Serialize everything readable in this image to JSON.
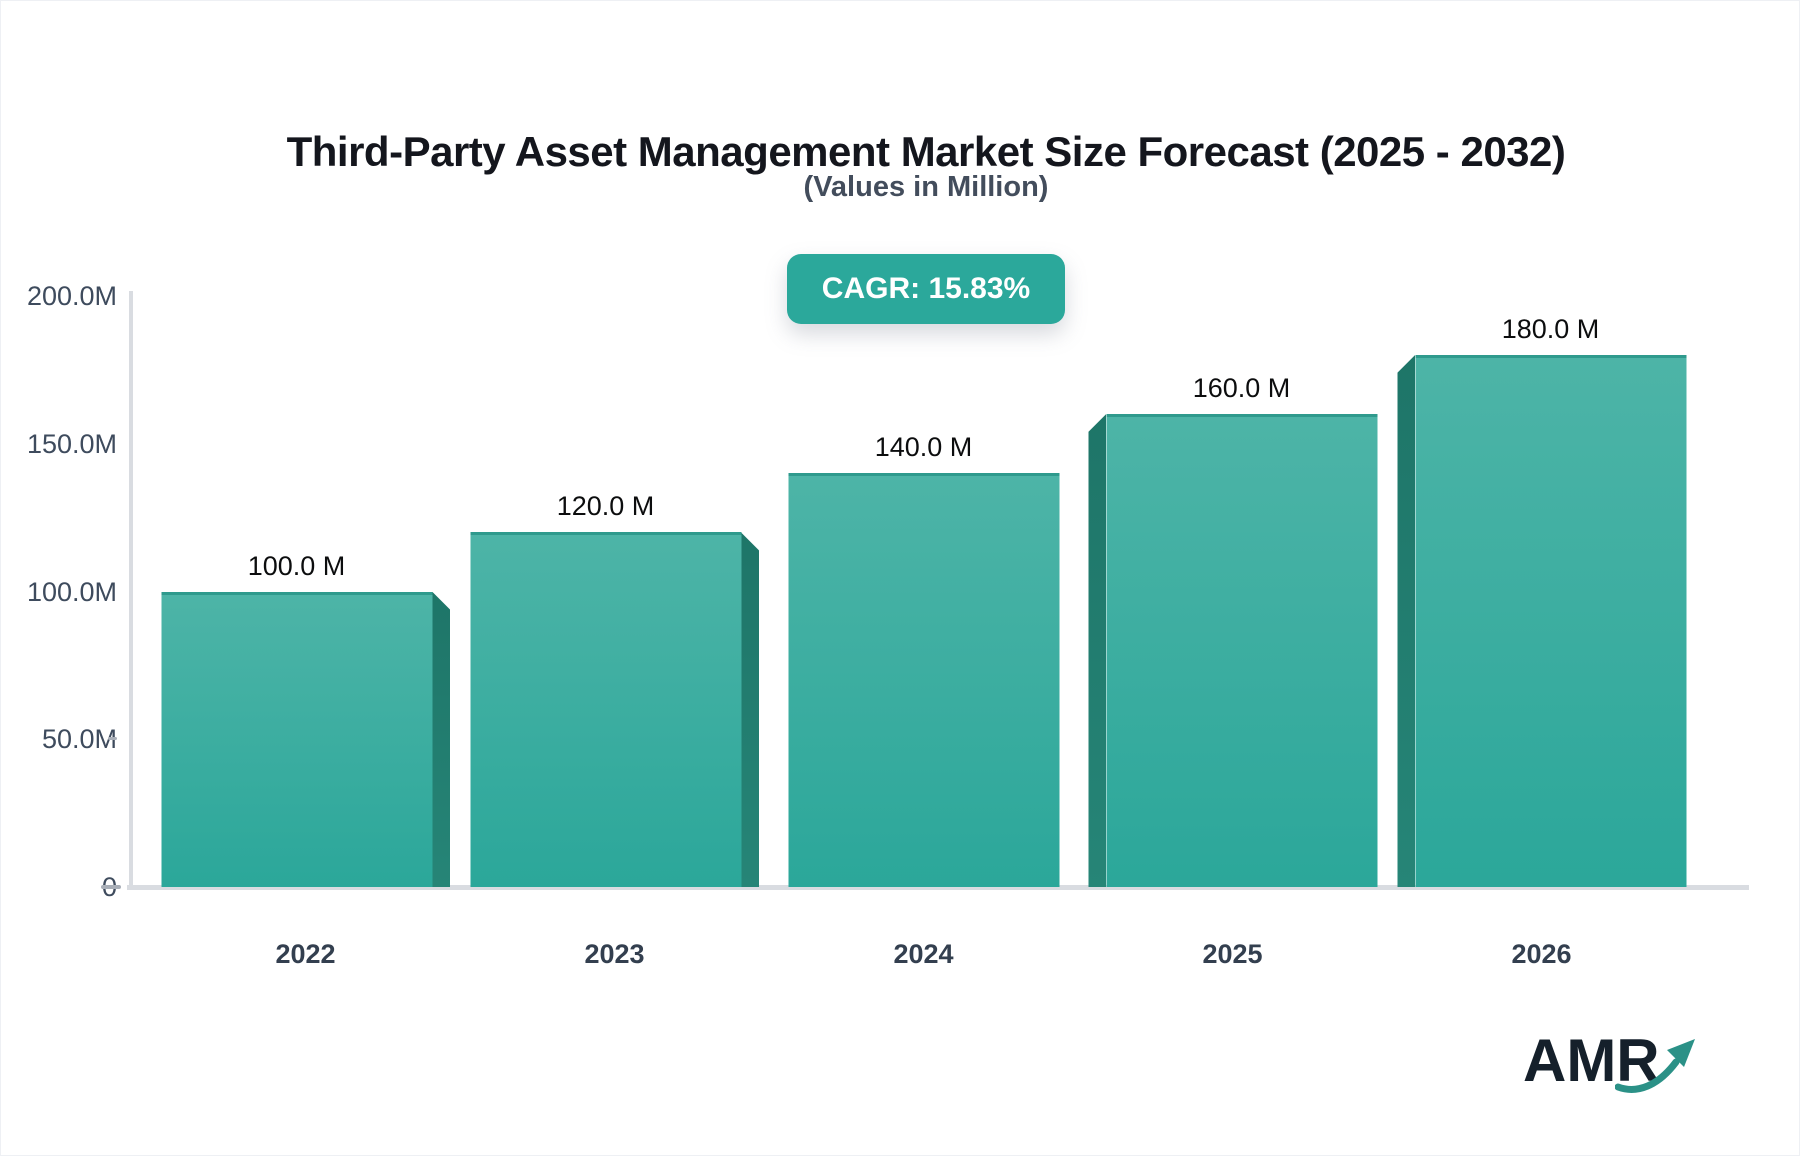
{
  "header": {
    "title": "Third-Party Asset Management Market Size Forecast (2025 - 2032)",
    "subtitle": "(Values in Million)",
    "cagr_label": "CAGR: 15.83%"
  },
  "chart_data": {
    "type": "bar",
    "title": "Third-Party Asset Management Market Size Forecast (2025 - 2032)",
    "subtitle": "(Values in Million)",
    "unit": "Million",
    "cagr": "15.83%",
    "categories": [
      "2022",
      "2023",
      "2024",
      "2025",
      "2026"
    ],
    "values": [
      100.0,
      120.0,
      140.0,
      160.0,
      180.0
    ],
    "value_labels": [
      "100.0 M",
      "120.0 M",
      "140.0 M",
      "160.0 M",
      "180.0 M"
    ],
    "ylim": [
      0,
      200
    ],
    "y_ticks": [
      {
        "label": "200.0M",
        "value": 200
      },
      {
        "label": "150.0M",
        "value": 150
      },
      {
        "label": "100.0M",
        "value": 100
      },
      {
        "label": "50.0M",
        "value": 50
      },
      {
        "label": "0",
        "value": 0
      }
    ],
    "grid": false,
    "legend": false
  },
  "logo": {
    "text": "AMR",
    "arrow_icon": "growth-arrow-icon"
  },
  "colors": {
    "accent": "#2BA89B",
    "badge_text": "#FFFFFF",
    "bar_top": "#4DB4A7",
    "bar_bottom": "#2BA79A",
    "bar_edge": "#2F9A8D",
    "bar_side_dark": "#1E7568",
    "bar_side_light": "#268577",
    "axis": "#D9DCE1",
    "tick": "#A9AFB8",
    "title_text": "#14161D",
    "subtitle_text": "#434D5C",
    "axis_label": "#3E4B5D",
    "category_label": "#333F4F",
    "value_label": "#0C0D0E",
    "logo_text": "#15202B",
    "logo_arrow": "#2B9187"
  }
}
